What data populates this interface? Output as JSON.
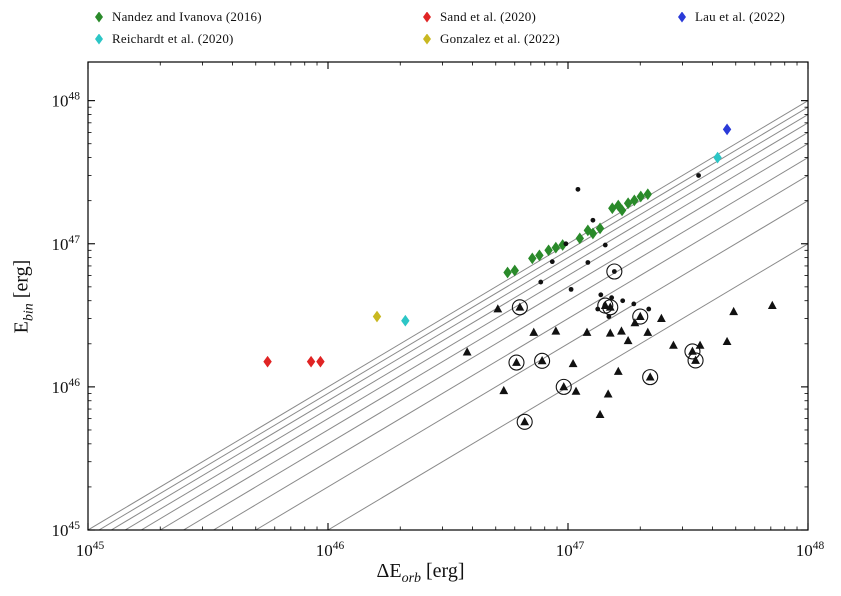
{
  "legend": {
    "items": [
      {
        "label": "Nandez and Ivanova (2016)",
        "color": "#2a8a2a"
      },
      {
        "label": "Reichardt et al. (2020)",
        "color": "#2cc6c6"
      },
      {
        "label": "Sand et al. (2020)",
        "color": "#e02424"
      },
      {
        "label": "Gonzalez et al. (2022)",
        "color": "#c9b821"
      },
      {
        "label": "Lau et al. (2022)",
        "color": "#2a3ad8"
      }
    ]
  },
  "axes": {
    "x": {
      "main": "ΔE",
      "sub": "orb",
      "unit": " [erg]"
    },
    "y": {
      "main": "E",
      "sub": "bin",
      "unit": " [erg]"
    }
  },
  "chart_data": {
    "type": "scatter",
    "title": "",
    "x_axis": {
      "label": "ΔE_orb [erg]",
      "scale": "log",
      "range_log10": [
        45,
        48
      ],
      "ticks_log10": [
        45,
        46,
        47,
        48
      ]
    },
    "y_axis": {
      "label": "E_bin [erg]",
      "scale": "log",
      "range_log10": [
        45,
        48.27
      ],
      "ticks_log10": [
        45,
        46,
        47,
        48
      ]
    },
    "grid": false,
    "legend_position": "top-outside",
    "guide_lines": {
      "description": "Diagonal lines of constant efficiency E_bin = alpha * Delta E_orb",
      "alphas": [
        1.0,
        0.9,
        0.8,
        0.7,
        0.6,
        0.5,
        0.4,
        0.3,
        0.2,
        0.1
      ],
      "color": "#8a8a8a"
    },
    "series": [
      {
        "name": "Nandez and Ivanova (2016)",
        "marker": "diamond",
        "color": "#2a8a2a",
        "points": [
          [
            5.6e+46,
            6.3e+46
          ],
          [
            6e+46,
            6.5e+46
          ],
          [
            7.1e+46,
            7.9e+46
          ],
          [
            7.6e+46,
            8.3e+46
          ],
          [
            8.3e+46,
            9e+46
          ],
          [
            8.9e+46,
            9.4e+46
          ],
          [
            9.5e+46,
            9.8e+46
          ],
          [
            1.12e+47,
            1.09e+47
          ],
          [
            1.21e+47,
            1.24e+47
          ],
          [
            1.27e+47,
            1.18e+47
          ],
          [
            1.36e+47,
            1.28e+47
          ],
          [
            1.53e+47,
            1.77e+47
          ],
          [
            1.62e+47,
            1.85e+47
          ],
          [
            1.68e+47,
            1.71e+47
          ],
          [
            1.78e+47,
            1.92e+47
          ],
          [
            1.89e+47,
            2.01e+47
          ],
          [
            2.01e+47,
            2.14e+47
          ],
          [
            2.15e+47,
            2.22e+47
          ]
        ]
      },
      {
        "name": "Reichardt et al. (2020)",
        "marker": "diamond",
        "color": "#2cc6c6",
        "points": [
          [
            2.1e+46,
            2.9e+46
          ],
          [
            4.2e+47,
            4e+47
          ]
        ]
      },
      {
        "name": "Sand et al. (2020)",
        "marker": "diamond",
        "color": "#e02424",
        "points": [
          [
            5.6e+45,
            1.5e+46
          ],
          [
            8.5e+45,
            1.5e+46
          ],
          [
            9.3e+45,
            1.5e+46
          ]
        ]
      },
      {
        "name": "Gonzalez et al. (2022)",
        "marker": "diamond",
        "color": "#c9b821",
        "points": [
          [
            1.6e+46,
            3.1e+46
          ]
        ]
      },
      {
        "name": "Lau et al. (2022)",
        "marker": "diamond",
        "color": "#2a3ad8",
        "points": [
          [
            4.6e+47,
            6.3e+47
          ]
        ]
      },
      {
        "name": "simulations-dots",
        "marker": "dot",
        "color": "#111111",
        "points": [
          [
            1.1e+47,
            2.4e+47
          ],
          [
            1.27e+47,
            1.46e+47
          ],
          [
            9.8e+46,
            1e+47
          ],
          [
            1.43e+47,
            9.8e+46
          ],
          [
            8.6e+46,
            7.5e+46
          ],
          [
            1.21e+47,
            7.4e+46
          ],
          [
            7.7e+46,
            5.4e+46
          ],
          [
            1.03e+47,
            4.8e+46
          ],
          [
            1.37e+47,
            4.4e+46
          ],
          [
            1.52e+47,
            4.2e+46
          ],
          [
            1.69e+47,
            4e+46
          ],
          [
            1.88e+47,
            3.8e+46
          ],
          [
            1.33e+47,
            3.5e+46
          ],
          [
            2.17e+47,
            3.5e+46
          ],
          [
            1.48e+47,
            3.1e+46
          ],
          [
            3.5e+47,
            3e+47
          ]
        ]
      },
      {
        "name": "observations-triangles",
        "marker": "triangle",
        "color": "#111111",
        "points": [
          [
            3.8e+46,
            1.75e+46
          ],
          [
            5.1e+46,
            3.5e+46
          ],
          [
            5.4e+46,
            9.4e+45
          ],
          [
            7.2e+46,
            2.4e+46
          ],
          [
            8.9e+46,
            2.45e+46
          ],
          [
            1.05e+47,
            1.45e+46
          ],
          [
            1.08e+47,
            9.3e+45
          ],
          [
            1.36e+47,
            6.4e+45
          ],
          [
            1.47e+47,
            8.9e+45
          ],
          [
            1.62e+47,
            1.28e+46
          ],
          [
            1.78e+47,
            2.1e+46
          ],
          [
            1.67e+47,
            2.45e+46
          ],
          [
            1.9e+47,
            2.8e+46
          ],
          [
            2.15e+47,
            2.4e+46
          ],
          [
            2.45e+47,
            3e+46
          ],
          [
            2.75e+47,
            1.95e+46
          ],
          [
            3.55e+47,
            1.95e+46
          ],
          [
            4.6e+47,
            2.07e+46
          ],
          [
            4.9e+47,
            3.35e+46
          ],
          [
            7.1e+47,
            3.7e+46
          ],
          [
            1.2e+47,
            2.4e+46
          ],
          [
            1.5e+47,
            2.37e+46
          ]
        ]
      },
      {
        "name": "observations-triangles-circled",
        "marker": "triangle-circled",
        "color": "#111111",
        "points": [
          [
            6.3e+46,
            3.6e+46
          ],
          [
            6.6e+46,
            5.7e+45
          ],
          [
            6.1e+46,
            1.48e+46
          ],
          [
            7.8e+46,
            1.52e+46
          ],
          [
            9.6e+46,
            1e+46
          ],
          [
            1.43e+47,
            3.7e+46
          ],
          [
            1.5e+47,
            3.6e+46
          ],
          [
            2e+47,
            3.1e+46
          ],
          [
            2.2e+47,
            1.17e+46
          ],
          [
            3.3e+47,
            1.77e+46
          ],
          [
            3.4e+47,
            1.53e+46
          ]
        ]
      },
      {
        "name": "observation-dot-circled",
        "marker": "dot-circled",
        "color": "#111111",
        "points": [
          [
            1.56e+47,
            6.4e+46
          ]
        ]
      }
    ]
  }
}
